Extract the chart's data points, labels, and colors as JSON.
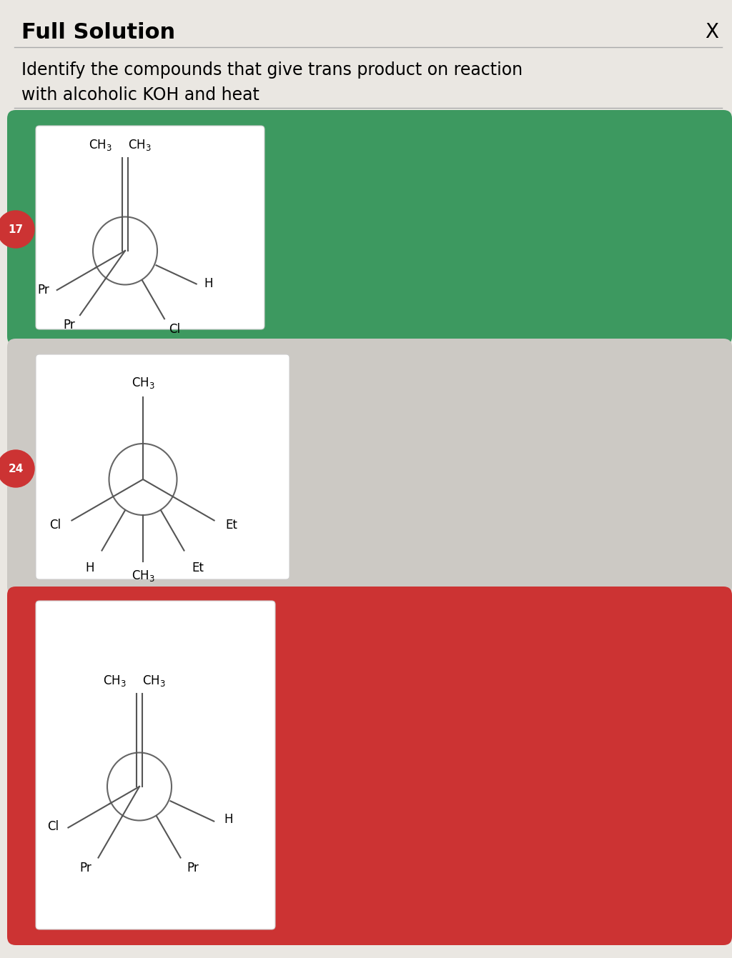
{
  "title": "Full Solution",
  "close_x": "X",
  "question_line1": "Identify the compounds that give trans product on reaction",
  "question_line2": "with alcoholic KOH and heat",
  "bg_color": "#eae7e2",
  "card1_bg": "#3d9960",
  "card2_bg": "#ccc9c4",
  "card3_bg": "#cc3333",
  "white": "#ffffff",
  "num1_badge": "17",
  "num2_badge": "24",
  "badge_color": "#cc3333"
}
